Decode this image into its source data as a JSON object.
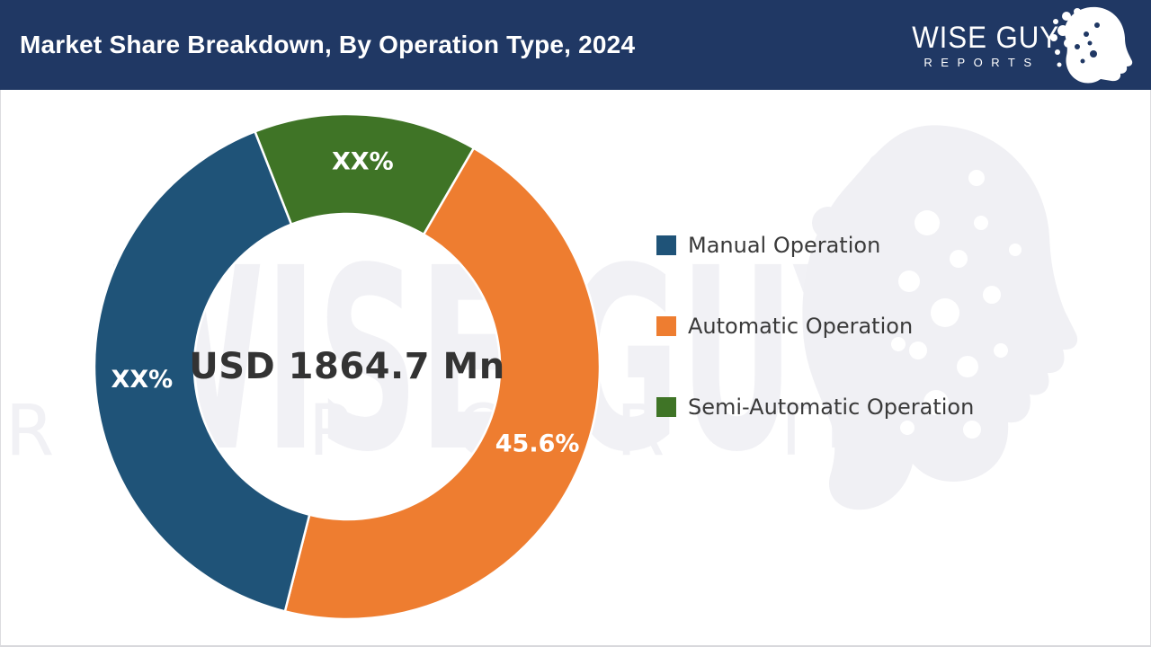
{
  "header": {
    "title": "Market Share Breakdown, By Operation Type, 2024",
    "bg_color": "#203864",
    "logo": {
      "line1": "WISE GUY",
      "line2": "REPORTS"
    }
  },
  "watermark": {
    "line1": "WISE GUY",
    "line2": "R E P O R T S"
  },
  "chart_data": {
    "type": "pie",
    "subtype": "donut",
    "title": "Market Share Breakdown, By Operation Type, 2024",
    "center_label": "USD 1864.7 Mn",
    "inner_radius_ratio": 0.605,
    "start_angle_deg": -21.4,
    "segments": [
      {
        "name": "Semi-Automatic Operation",
        "label": "XX%",
        "sweep_percent": 14.3,
        "color": "#3F7426"
      },
      {
        "name": "Automatic Operation",
        "label": "45.6%",
        "sweep_percent": 45.6,
        "color": "#EE7D30"
      },
      {
        "name": "Manual Operation",
        "label": "XX%",
        "sweep_percent": 40.1,
        "color": "#1F5378"
      }
    ],
    "legend": {
      "position": "right",
      "items": [
        {
          "label": "Manual Operation",
          "color": "#1F5378"
        },
        {
          "label": "Automatic Operation",
          "color": "#EE7D30"
        },
        {
          "label": "Semi-Automatic Operation",
          "color": "#3F7426"
        }
      ]
    }
  }
}
